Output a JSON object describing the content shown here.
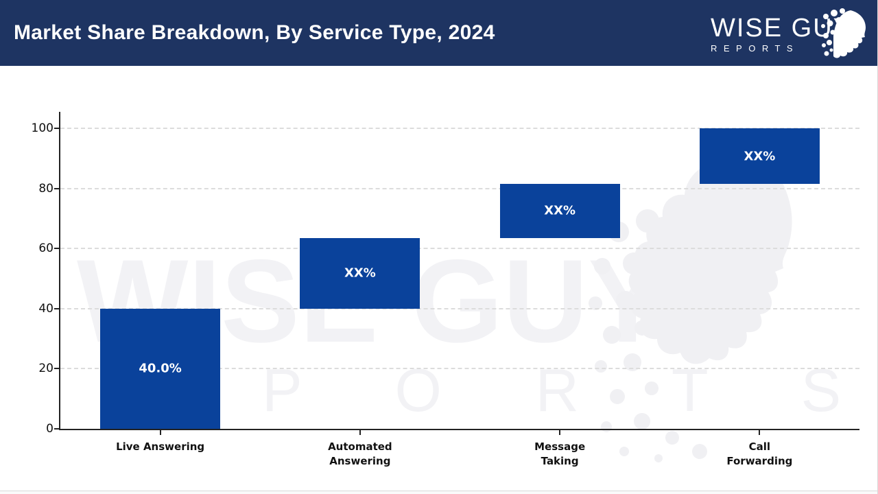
{
  "header": {
    "title": "Market Share Breakdown, By Service Type, 2024",
    "logo": {
      "name": "WISE GUY",
      "sub": "REPORTS"
    }
  },
  "watermark": {
    "line1": "WISE GUY",
    "line2": "P O R T S"
  },
  "colors": {
    "header_bg": "#1e3462",
    "bar_fill": "#0a429b",
    "bar_label": "#ffffff",
    "axis": "#222222",
    "gridline": "#dcdcdc",
    "tick_label": "#111111",
    "watermark": "#f2f2f5"
  },
  "chart_data": {
    "type": "bar",
    "subtype": "floating_waterfall",
    "title": "Market Share Breakdown, By Service Type, 2024",
    "categories": [
      "Live Answering",
      "Automated Answering",
      "Message Taking",
      "Call Forwarding"
    ],
    "bars": [
      {
        "category": "Live Answering",
        "start": 0,
        "end": 40,
        "label": "40.0%"
      },
      {
        "category": "Automated Answering",
        "start": 40,
        "end": 63.5,
        "label": "XX%"
      },
      {
        "category": "Message Taking",
        "start": 63.5,
        "end": 81.5,
        "label": "XX%"
      },
      {
        "category": "Call Forwarding",
        "start": 81.5,
        "end": 100,
        "label": "XX%"
      }
    ],
    "ylim": [
      0,
      100
    ],
    "y_ticks": [
      0,
      20,
      40,
      60,
      80,
      100
    ],
    "xlabel": "",
    "ylabel": "",
    "grid": "horizontal-dashed",
    "legend": "none"
  }
}
